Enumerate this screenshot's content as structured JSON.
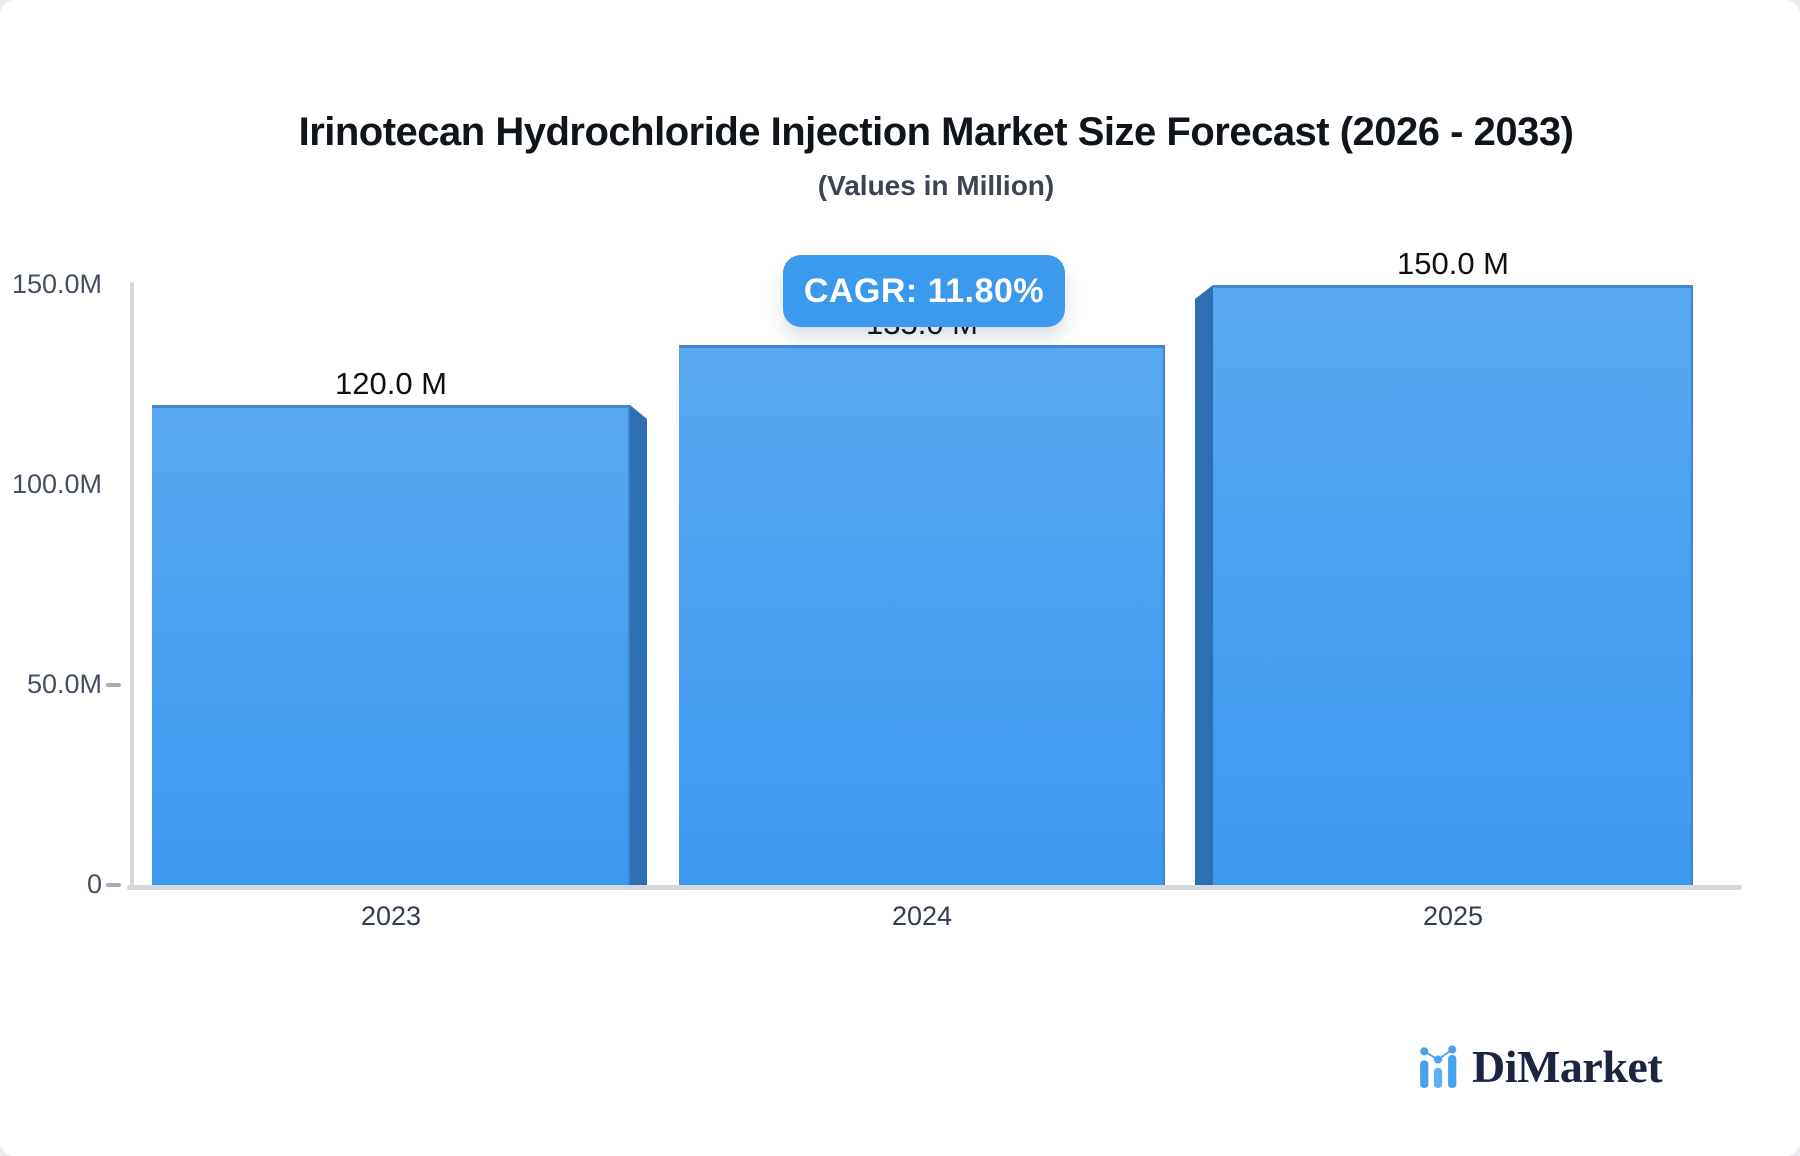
{
  "title": "Irinotecan Hydrochloride Injection Market Size Forecast (2026 - 2033)",
  "subtitle": "(Values in Million)",
  "cagr": {
    "label": "CAGR: 11.80%",
    "value_pct": 11.8
  },
  "brand": {
    "name": "DiMarket",
    "icon": "bar-chart-logo-icon"
  },
  "colors": {
    "bar_top": "#59a9f1",
    "bar_bottom": "#3d99ef",
    "bar_side": "#2d6fb5",
    "bar_edge": "#4586cb",
    "badge_blue": "#3b99ee",
    "axis_gray": "#d5d8dd",
    "tick_text": "#475063",
    "category_text": "#333d4f",
    "logo_navy": "#1b2540",
    "logo_blue": "#49a2f0"
  },
  "chart_data": {
    "type": "bar",
    "title": "Irinotecan Hydrochloride Injection Market Size Forecast (2026 - 2033)",
    "subtitle": "(Values in Million)",
    "categories": [
      "2023",
      "2024",
      "2025"
    ],
    "values": [
      120.0,
      135.0,
      150.0
    ],
    "value_labels": [
      "120.0 M",
      "135.0 M",
      "150.0 M"
    ],
    "ytick_labels": [
      "150.0M",
      "100.0M",
      "50.0M",
      "0"
    ],
    "ytick_values": [
      150,
      100,
      50,
      0
    ],
    "ylim": [
      0,
      150
    ],
    "xlabel": "",
    "ylabel": "",
    "grid": false,
    "legend": null,
    "annotation": "CAGR: 11.80%"
  }
}
